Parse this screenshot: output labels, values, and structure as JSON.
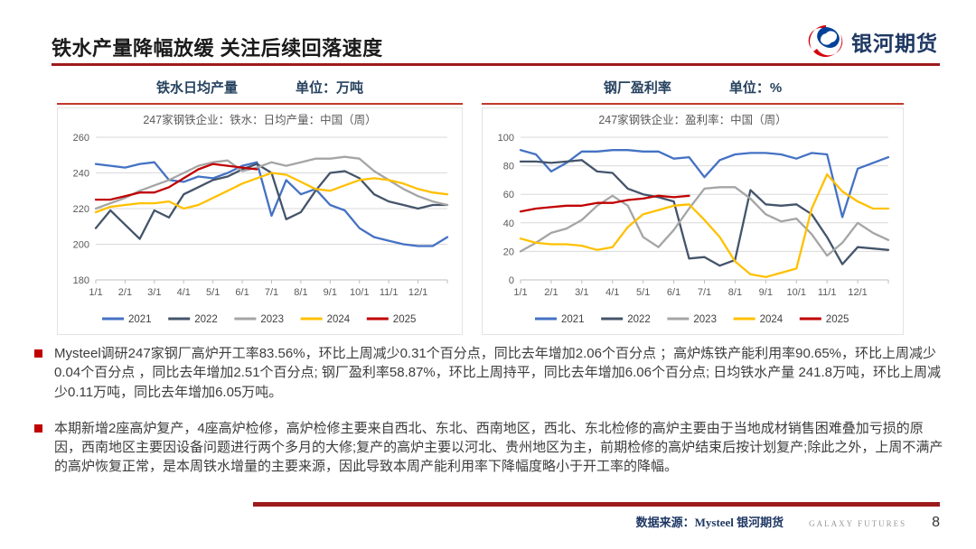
{
  "header": {
    "title": "铁水产量降幅放缓 关注后续回落速度",
    "logo_text": "银河期货",
    "logo_colors": {
      "red": "#d7000f",
      "blue": "#004098"
    }
  },
  "charts": [
    {
      "section_title": "铁水日均产量",
      "unit_label": "单位：万吨"
    },
    {
      "section_title": "钢厂盈利率",
      "unit_label": "单位：%"
    }
  ],
  "chart_data": [
    {
      "type": "line",
      "title": "247家钢铁企业：铁水：日均产量：中国（周）",
      "xlabel": "",
      "ylabel": "万吨",
      "ylim": [
        180,
        260
      ],
      "yticks": [
        180,
        200,
        220,
        240,
        260
      ],
      "x_labels": [
        "1/1",
        "2/1",
        "3/1",
        "4/1",
        "5/1",
        "6/1",
        "7/1",
        "8/1",
        "9/1",
        "10/1",
        "11/1",
        "12/1"
      ],
      "x_step_months": 0.5,
      "grid": true,
      "legend_position": "bottom",
      "series": [
        {
          "name": "2021",
          "color": "#4472c4",
          "values": [
            245,
            244,
            243,
            245,
            246,
            236,
            235,
            238,
            237,
            240,
            244,
            246,
            216,
            236,
            228,
            231,
            222,
            219,
            209,
            204,
            202,
            200,
            199,
            199,
            204
          ]
        },
        {
          "name": "2022",
          "color": "#44546a",
          "values": [
            209,
            219,
            211,
            203,
            219,
            215,
            228,
            232,
            236,
            238,
            242,
            245,
            240,
            214,
            218,
            230,
            240,
            241,
            237,
            228,
            224,
            222,
            220,
            222,
            222
          ]
        },
        {
          "name": "2023",
          "color": "#a5a5a5",
          "values": [
            220,
            223,
            226,
            230,
            233,
            236,
            240,
            244,
            246,
            247,
            241,
            243,
            246,
            244,
            246,
            248,
            248,
            249,
            248,
            241,
            236,
            231,
            227,
            224,
            222
          ]
        },
        {
          "name": "2024",
          "color": "#ffc000",
          "values": [
            218,
            221,
            222,
            223,
            223,
            224,
            220,
            222,
            226,
            230,
            234,
            237,
            240,
            239,
            235,
            231,
            230,
            233,
            236,
            237,
            236,
            234,
            231,
            229,
            228
          ]
        },
        {
          "name": "2025",
          "color": "#c00000",
          "values": [
            225,
            225,
            227,
            229,
            229,
            232,
            237,
            242,
            245,
            244,
            243,
            242
          ]
        }
      ]
    },
    {
      "type": "line",
      "title": "247家钢铁企业：盈利率：中国（周）",
      "xlabel": "",
      "ylabel": "%",
      "ylim": [
        0,
        100
      ],
      "yticks": [
        0,
        20,
        40,
        60,
        80,
        100
      ],
      "x_labels": [
        "1/1",
        "2/1",
        "3/1",
        "4/1",
        "5/1",
        "6/1",
        "7/1",
        "8/1",
        "9/1",
        "10/1",
        "11/1",
        "12/1"
      ],
      "x_step_months": 0.5,
      "grid": true,
      "legend_position": "bottom",
      "series": [
        {
          "name": "2021",
          "color": "#4472c4",
          "values": [
            91,
            88,
            76,
            82,
            90,
            90,
            91,
            91,
            90,
            90,
            85,
            86,
            72,
            84,
            88,
            89,
            89,
            88,
            85,
            89,
            88,
            44,
            78,
            82,
            86
          ]
        },
        {
          "name": "2022",
          "color": "#44546a",
          "values": [
            83,
            83,
            82,
            83,
            84,
            76,
            75,
            64,
            60,
            58,
            55,
            15,
            16,
            10,
            14,
            63,
            53,
            52,
            53,
            46,
            30,
            11,
            23,
            22,
            21
          ]
        },
        {
          "name": "2023",
          "color": "#a5a5a5",
          "values": [
            20,
            26,
            33,
            36,
            42,
            52,
            59,
            52,
            30,
            23,
            35,
            50,
            64,
            65,
            65,
            57,
            46,
            41,
            43,
            32,
            17,
            26,
            40,
            33,
            28
          ]
        },
        {
          "name": "2024",
          "color": "#ffc000",
          "values": [
            29,
            26,
            25,
            25,
            24,
            21,
            23,
            37,
            46,
            49,
            52,
            53,
            42,
            30,
            13,
            4,
            2,
            5,
            8,
            50,
            74,
            62,
            55,
            50,
            50
          ]
        },
        {
          "name": "2025",
          "color": "#c00000",
          "values": [
            48,
            50,
            51,
            52,
            52,
            54,
            54,
            56,
            57,
            59,
            58,
            59
          ]
        }
      ]
    }
  ],
  "bullets": [
    {
      "text": "Mysteel调研247家钢厂高炉开工率83.56%，环比上周减少0.31个百分点，同比去年增加2.06个百分点 ；高炉炼铁产能利用率90.65%，环比上周减少0.04个百分点 ，同比去年增加2.51个百分点; 钢厂盈利率58.87%，环比上周持平，同比去年增加6.06个百分点; 日均铁水产量 241.8万吨，环比上周减少0.11万吨，同比去年增加6.05万吨。"
    },
    {
      "text": "本期新增2座高炉复产，4座高炉检修，高炉检修主要来自西北、东北、西南地区，西北、东北检修的高炉主要由于当地成材销售困难叠加亏损的原因，西南地区主要因设备问题进行两个多月的大修;复产的高炉主要以河北、贵州地区为主，前期检修的高炉结束后按计划复产;除此之外，上周不满产的高炉恢复正常，是本周铁水增量的主要来源，因此导致本周产能利用率下降幅度略小于开工率的降幅。"
    }
  ],
  "footer": {
    "source": "数据来源：Mysteel 银河期货",
    "brand": "GALAXY FUTURES",
    "page": "8"
  },
  "style_colors": {
    "title_rule": "#9e1b1b",
    "chart_head_rule": "#c0392b",
    "grid": "#d9d9d9",
    "axis": "#bfbfbf",
    "tick_text": "#595959"
  }
}
